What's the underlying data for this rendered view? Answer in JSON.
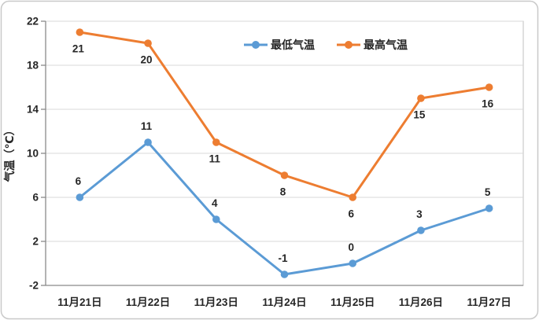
{
  "chart_data": {
    "type": "line",
    "title": "",
    "xlabel": "",
    "ylabel": "气温（℃）",
    "categories": [
      "11月21日",
      "11月22日",
      "11月23日",
      "11月24日",
      "11月25日",
      "11月26日",
      "11月27日"
    ],
    "series": [
      {
        "name": "最低气温",
        "color": "#5B9BD5",
        "values": [
          6,
          11,
          4,
          -1,
          0,
          3,
          5
        ],
        "label_position": "above"
      },
      {
        "name": "最高气温",
        "color": "#ED7D31",
        "values": [
          21,
          20,
          11,
          8,
          6,
          15,
          16
        ],
        "label_position": "below"
      }
    ],
    "ylim": [
      -2,
      22
    ],
    "yticks": [
      -2,
      2,
      6,
      10,
      14,
      18,
      22
    ],
    "grid": true,
    "data_labels": true,
    "legend_position": "top-center",
    "marker": "circle"
  },
  "style": {
    "background": "#ffffff",
    "outer_border_color": "#c9c9c9",
    "plot_border_color": "#c0c0c0",
    "gridline_color": "#d9d9d9",
    "axis_color": "#8a8a8a",
    "text_color": "#262626"
  }
}
